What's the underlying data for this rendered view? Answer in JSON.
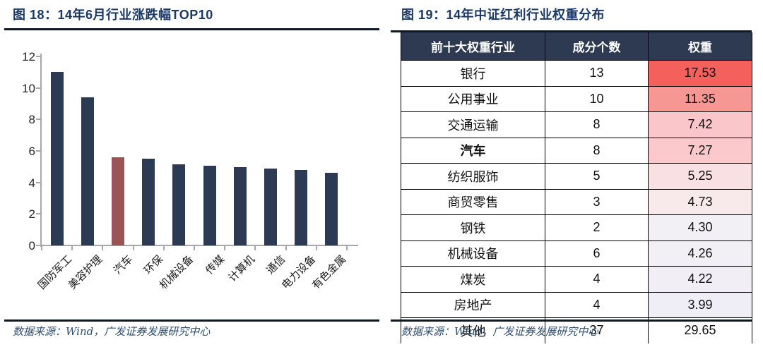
{
  "left_panel": {
    "title": "图 18：14年6月行业涨跌幅TOP10",
    "source": "数据来源：Wind，广发证券发展研究中心"
  },
  "right_panel": {
    "title": "图 19：14年中证红利行业权重分布",
    "source": "数据来源：Wind，广发证券发展研究中心"
  },
  "chart_data": {
    "type": "bar",
    "title": "14年6月行业涨跌幅TOP10",
    "categories": [
      "国防军工",
      "美容护理",
      "汽车",
      "环保",
      "机械设备",
      "传媒",
      "计算机",
      "通信",
      "电力设备",
      "有色金属"
    ],
    "values": [
      11.0,
      9.4,
      5.6,
      5.5,
      5.15,
      5.05,
      4.95,
      4.9,
      4.8,
      4.6
    ],
    "highlight_index": 2,
    "bar_color": "#2d3a53",
    "highlight_color": "#9b5355",
    "xlabel": "",
    "ylabel": "",
    "ylim": [
      0,
      12
    ],
    "yticks": [
      0,
      2,
      4,
      6,
      8,
      10,
      12
    ],
    "grid": false,
    "legend": null
  },
  "table": {
    "header_bg": "#2e3a52",
    "columns": [
      "前十大权重行业",
      "成分个数",
      "权重"
    ],
    "rows": [
      {
        "industry": "银行",
        "count": "13",
        "weight": "17.53",
        "weight_bg": "#f4605c",
        "highlight": false
      },
      {
        "industry": "公用事业",
        "count": "10",
        "weight": "11.35",
        "weight_bg": "#f79793",
        "highlight": false
      },
      {
        "industry": "交通运输",
        "count": "8",
        "weight": "7.42",
        "weight_bg": "#fac6c9",
        "highlight": false
      },
      {
        "industry": "汽车",
        "count": "8",
        "weight": "7.27",
        "weight_bg": "#fbc9cc",
        "highlight": true
      },
      {
        "industry": "纺织服饰",
        "count": "5",
        "weight": "5.25",
        "weight_bg": "#f9e0e3",
        "highlight": false
      },
      {
        "industry": "商贸零售",
        "count": "3",
        "weight": "4.73",
        "weight_bg": "#f8e9eb",
        "highlight": false
      },
      {
        "industry": "钢铁",
        "count": "2",
        "weight": "4.30",
        "weight_bg": "#f2f0f5",
        "highlight": false
      },
      {
        "industry": "机械设备",
        "count": "6",
        "weight": "4.26",
        "weight_bg": "#f2f0f5",
        "highlight": false
      },
      {
        "industry": "煤炭",
        "count": "4",
        "weight": "4.22",
        "weight_bg": "#f1eff5",
        "highlight": false
      },
      {
        "industry": "房地产",
        "count": "4",
        "weight": "3.99",
        "weight_bg": "#efeef6",
        "highlight": false
      },
      {
        "industry": "其他",
        "count": "37",
        "weight": "29.65",
        "weight_bg": "#ffffff",
        "highlight": false
      }
    ]
  }
}
